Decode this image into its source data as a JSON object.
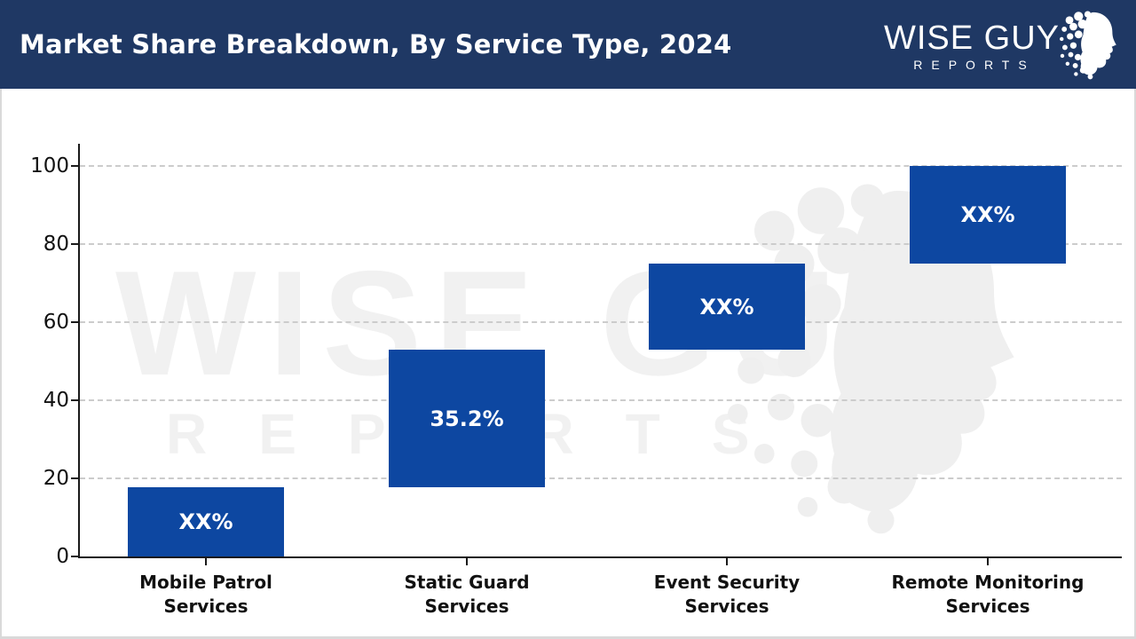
{
  "header": {
    "title": "Market Share Breakdown, By Service Type, 2024",
    "logo": {
      "wordmark": "WISE GUY",
      "subtitle": "REPORTS"
    }
  },
  "watermark": {
    "wordmark": "WISE GUY",
    "subtitle": "REPORTS"
  },
  "chart_data": {
    "type": "bar",
    "variant": "waterfall",
    "title": "Market Share Breakdown, By Service Type, 2024",
    "categories": [
      "Mobile Patrol Services",
      "Static Guard Services",
      "Event Security Services",
      "Remote Monitoring Services"
    ],
    "segments": [
      {
        "category": "Mobile Patrol Services",
        "category_lines": [
          "Mobile Patrol",
          "Services"
        ],
        "start": 0,
        "end": 17.7,
        "value_label": "XX%"
      },
      {
        "category": "Static Guard Services",
        "category_lines": [
          "Static Guard",
          "Services"
        ],
        "start": 17.7,
        "end": 52.9,
        "value_label": "35.2%"
      },
      {
        "category": "Event Security Services",
        "category_lines": [
          "Event Security",
          "Services"
        ],
        "start": 52.9,
        "end": 74.9,
        "value_label": "XX%"
      },
      {
        "category": "Remote Monitoring Services",
        "category_lines": [
          "Remote Monitoring",
          "Services"
        ],
        "start": 74.9,
        "end": 100,
        "value_label": "XX%"
      }
    ],
    "xlabel": "",
    "ylabel": "",
    "ylim": [
      0,
      100
    ],
    "yticks": [
      0,
      20,
      40,
      60,
      80,
      100
    ],
    "grid": {
      "horizontal": true,
      "style": "dashed"
    },
    "legend": "none",
    "colors": {
      "bar": "#0d47a1",
      "bar_label": "#ffffff",
      "grid": "#cccccc",
      "axis": "#1a1a1a",
      "tick_label": "#111111"
    }
  },
  "colors": {
    "header_bg": "#1f3864",
    "card_bg": "#ffffff",
    "card_border": "#d9d9d9",
    "watermark": "#f1f1f1"
  }
}
